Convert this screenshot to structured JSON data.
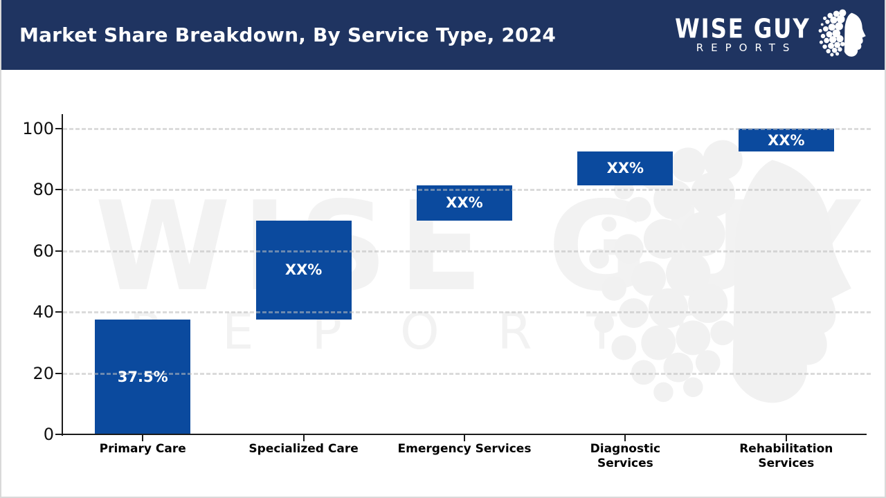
{
  "header": {
    "title": "Market Share Breakdown, By Service Type, 2024",
    "logo_line1": "WISE GUY",
    "logo_line2": "REPORTS"
  },
  "watermark": {
    "line1": "WISE GUY",
    "line2": "REPORTS",
    "face_icon": "dotted-head-profile"
  },
  "colors": {
    "header_bg": "#1f3461",
    "bar": "#0b4a9e",
    "bar_label": "#ffffff",
    "title_text": "#ffffff",
    "axis": "#1a1a1a",
    "watermark": "#f2f2f2"
  },
  "chart_data": {
    "type": "bar",
    "subtype": "waterfall",
    "title": "Market Share Breakdown, By Service Type, 2024",
    "xlabel": "",
    "ylabel": "",
    "ylim": [
      0,
      100
    ],
    "yticks": [
      0,
      20,
      40,
      60,
      80,
      100
    ],
    "grid": "horizontal-dashed",
    "legend": "none",
    "bar_color": "#0b4a9e",
    "categories": [
      "Primary Care",
      "Specialized Care",
      "Emergency Services",
      "Diagnostic\nServices",
      "Rehabilitation\nServices"
    ],
    "segments": [
      {
        "category": "Primary Care",
        "label": "37.5%",
        "start": 0,
        "end": 37.5,
        "value": 37.5
      },
      {
        "category": "Specialized Care",
        "label": "XX%",
        "start": 37.5,
        "end": 70,
        "value": 32.5
      },
      {
        "category": "Emergency Services",
        "label": "XX%",
        "start": 70,
        "end": 81.5,
        "value": 11.5
      },
      {
        "category": "Diagnostic\nServices",
        "label": "XX%",
        "start": 81.5,
        "end": 92.5,
        "value": 11
      },
      {
        "category": "Rehabilitation\nServices",
        "label": "XX%",
        "start": 92.5,
        "end": 100,
        "value": 7.5
      }
    ]
  }
}
